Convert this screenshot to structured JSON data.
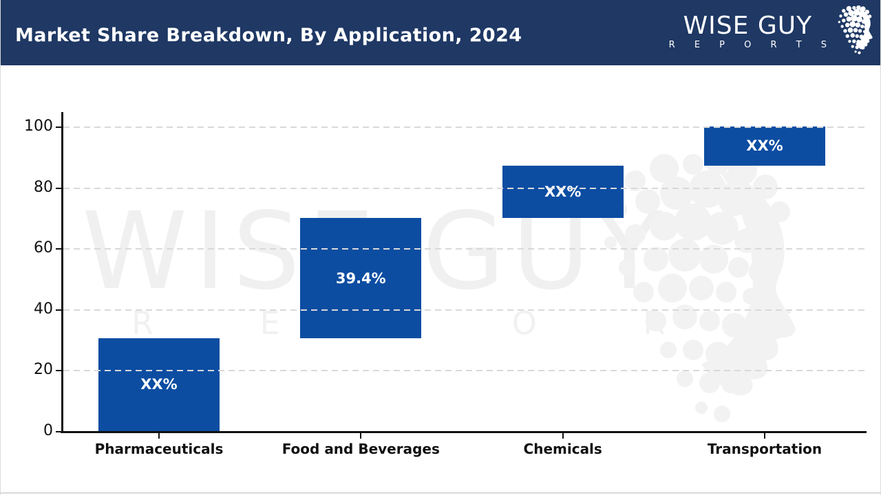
{
  "header": {
    "title": "Market Share Breakdown, By Application, 2024",
    "logo": {
      "line1": "WISE GUY",
      "line2": "R E P O R T S"
    }
  },
  "watermark": {
    "line1": "WISE GUY",
    "line2": "R E P O R T S"
  },
  "colors": {
    "header_bg": "#1f3864",
    "bar": "#0c4da2",
    "bar_label": "#ffffff",
    "gridline": "#d9d9d9",
    "axis": "#111111",
    "watermark": "#f0f0f0"
  },
  "chart_data": {
    "type": "bar",
    "variant": "floating-waterfall-segments",
    "title": "Market Share Breakdown, By Application, 2024",
    "categories": [
      "Pharmaceuticals",
      "Food and Beverages",
      "Chemicals",
      "Transportation"
    ],
    "bars": [
      {
        "category": "Pharmaceuticals",
        "start": 0,
        "end": 30.5,
        "value_label": "XX%"
      },
      {
        "category": "Food and Beverages",
        "start": 30.5,
        "end": 69.9,
        "value_label": "39.4%"
      },
      {
        "category": "Chemicals",
        "start": 69.9,
        "end": 87.2,
        "value_label": "XX%"
      },
      {
        "category": "Transportation",
        "start": 87.2,
        "end": 100,
        "value_label": "XX%"
      }
    ],
    "xlabel": "",
    "ylabel": "",
    "ylim": [
      0,
      100
    ],
    "yticks": [
      0,
      20,
      40,
      60,
      80,
      100
    ],
    "grid": "horizontal-dashed-over-bars",
    "legend": "none"
  }
}
